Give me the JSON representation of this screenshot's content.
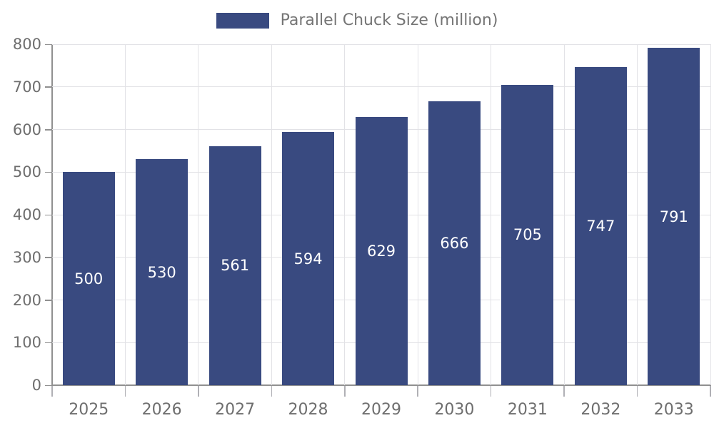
{
  "legend": {
    "label": "Parallel Chuck Size (million)"
  },
  "colors": {
    "bar": "#394A80",
    "grid": "#E2E2E6",
    "axis": "#909090",
    "tick_label": "#6E6E6E",
    "legend_text": "#757575",
    "value_label": "#FFFFFF",
    "background": "#FFFFFF"
  },
  "chart_data": {
    "type": "bar",
    "title": "Parallel Chuck Size (million)",
    "categories": [
      "2025",
      "2026",
      "2027",
      "2028",
      "2029",
      "2030",
      "2031",
      "2032",
      "2033"
    ],
    "values": [
      500,
      530,
      561,
      594,
      629,
      666,
      705,
      747,
      791
    ],
    "series": [
      {
        "name": "Parallel Chuck Size (million)",
        "values": [
          500,
          530,
          561,
          594,
          629,
          666,
          705,
          747,
          791
        ]
      }
    ],
    "xlabel": "",
    "ylabel": "",
    "ylim": [
      0,
      800
    ],
    "yticks": [
      0,
      100,
      200,
      300,
      400,
      500,
      600,
      700,
      800
    ],
    "grid": "horizontal and vertical gridlines on",
    "legend_position": "top-center",
    "value_labels": "inside bars, vertically centered, white"
  }
}
